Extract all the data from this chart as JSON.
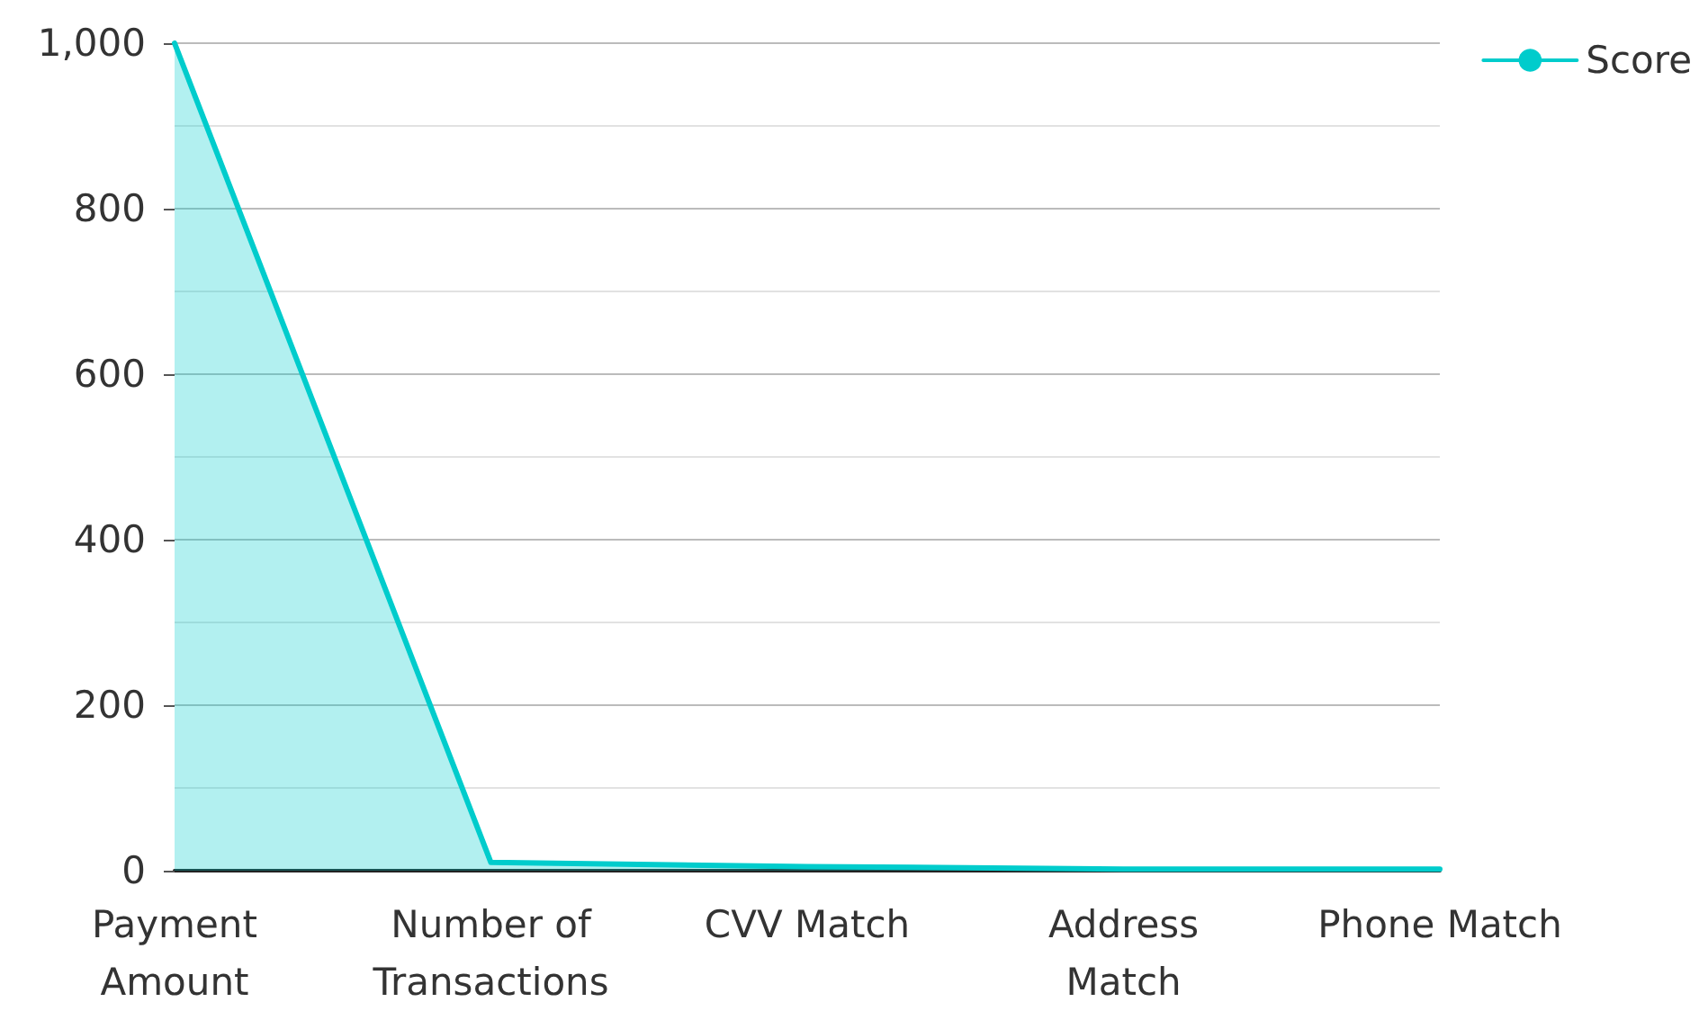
{
  "chart_data": {
    "type": "area",
    "categories": [
      "Payment\nAmount",
      "Number of\nTransactions",
      "CVV Match",
      "Address\nMatch",
      "Phone Match"
    ],
    "series": [
      {
        "name": "Score",
        "color": "#00cccc",
        "values": [
          1000,
          10,
          5,
          2,
          2
        ]
      }
    ],
    "ylim": [
      0,
      1000
    ],
    "yticks": [
      0,
      {
        "value": 100,
        "label": null
      },
      200,
      {
        "value": 300,
        "label": null
      },
      400,
      {
        "value": 500,
        "label": null
      },
      600,
      {
        "value": 700,
        "label": null
      },
      800,
      {
        "value": 900,
        "label": null
      },
      {
        "value": 1000,
        "label": "1,000"
      }
    ],
    "grid": "y",
    "legend": "top right",
    "marker": "none"
  }
}
